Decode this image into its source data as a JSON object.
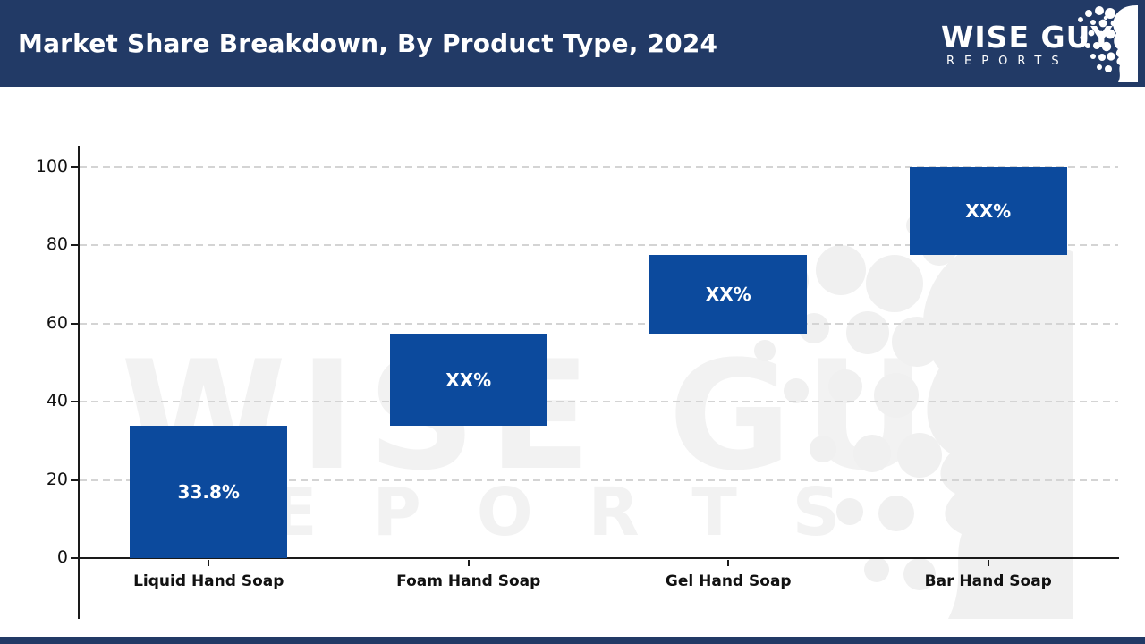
{
  "header": {
    "title": "Market Share Breakdown, By Product Type, 2024",
    "logo": {
      "line1": "WISE GUY",
      "line2": "REPORTS"
    }
  },
  "watermark": {
    "line1": "WISE GUY",
    "line2": "REPORTS"
  },
  "chart_data": {
    "type": "bar",
    "subtype": "waterfall",
    "title": "Market Share Breakdown, By Product Type, 2024",
    "categories": [
      "Liquid Hand Soap",
      "Foam Hand Soap",
      "Gel Hand Soap",
      "Bar Hand Soap"
    ],
    "segments": [
      {
        "category": "Liquid Hand Soap",
        "label": "33.8%",
        "start": 0,
        "end": 33.8
      },
      {
        "category": "Foam Hand Soap",
        "label": "XX%",
        "start": 33.8,
        "end": 57.4
      },
      {
        "category": "Gel Hand Soap",
        "label": "XX%",
        "start": 57.4,
        "end": 77.6
      },
      {
        "category": "Bar Hand Soap",
        "label": "XX%",
        "start": 77.6,
        "end": 100
      }
    ],
    "xlabel": "",
    "ylabel": "",
    "ylim": [
      0,
      100
    ],
    "yticks": [
      0,
      20,
      40,
      60,
      80,
      100
    ],
    "grid": "horizontal-dashed",
    "legend": "none",
    "bar_color": "#0c4a9d",
    "label_color": "#ffffff"
  },
  "colors": {
    "header_bg": "#223a66",
    "footer_bg": "#223a66",
    "bar": "#0c4a9d",
    "grid": "#d4d4d4",
    "axis": "#1a1a1a",
    "watermark": "#f2f2f2"
  }
}
